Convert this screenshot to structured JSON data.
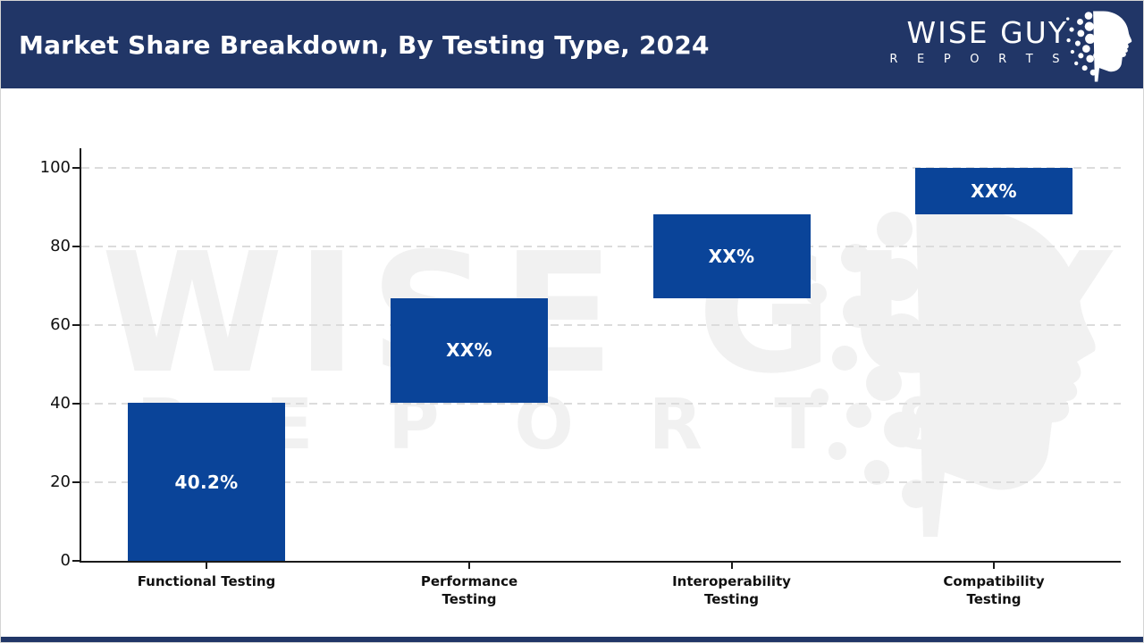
{
  "header": {
    "title": "Market Share Breakdown, By Testing Type, 2024",
    "logo": {
      "line1": "WISE GUY",
      "line2": "REPORTS"
    }
  },
  "watermark": {
    "line1": "WISE GUY",
    "line2": "REPORTS"
  },
  "colors": {
    "header_navy": "#213667",
    "bar_blue": "#0a4499",
    "watermark_gray": "#f1f1f1",
    "gridline_gray": "#dcdcdc",
    "axis_black": "#1a1a1a",
    "footer_navy": "#213667"
  },
  "chart_data": {
    "type": "bar",
    "subtype": "waterfall",
    "title": "Market Share Breakdown, By Testing Type, 2024",
    "xlabel": "",
    "ylabel": "",
    "categories": [
      "Functional Testing",
      "Performance Testing",
      "Interoperability Testing",
      "Compatibility Testing"
    ],
    "category_lines": [
      [
        "Functional Testing"
      ],
      [
        "Performance",
        "Testing"
      ],
      [
        "Interoperability",
        "Testing"
      ],
      [
        "Compatibility",
        "Testing"
      ]
    ],
    "bars": [
      {
        "label": "40.2%",
        "start": 0,
        "end": 40.2
      },
      {
        "label": "XX%",
        "start": 40.2,
        "end": 66.9
      },
      {
        "label": "XX%",
        "start": 66.9,
        "end": 88.2
      },
      {
        "label": "XX%",
        "start": 88.2,
        "end": 100
      }
    ],
    "yticks": [
      0,
      20,
      40,
      60,
      80,
      100
    ],
    "ylim": [
      0,
      105
    ],
    "grid": "horizontal-dashed",
    "legend": "none"
  }
}
